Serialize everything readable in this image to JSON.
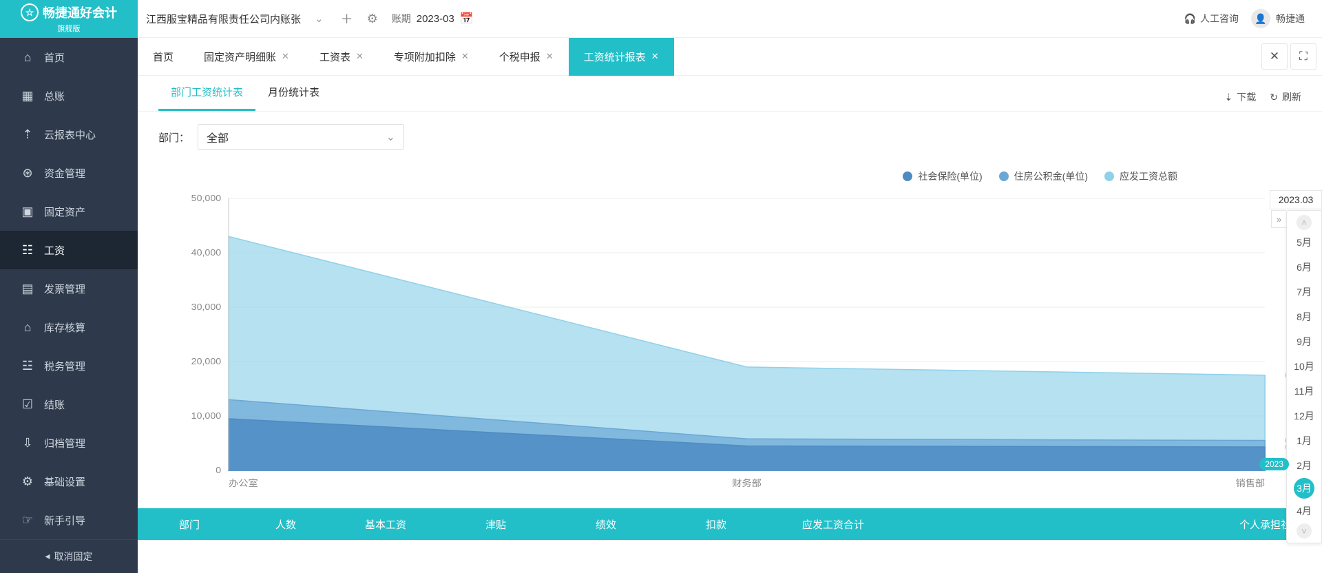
{
  "logo": {
    "brand": "畅捷通好会计",
    "edition": "旗舰版",
    "icon_glyph": "☆"
  },
  "header": {
    "company": "江西服宝精品有限责任公司内账张",
    "period_label": "账期",
    "period_value": "2023-03",
    "support": "人工咨询",
    "username": "畅捷通"
  },
  "sidebar": {
    "items": [
      {
        "icon": "⌂",
        "label": "首页"
      },
      {
        "icon": "▦",
        "label": "总账"
      },
      {
        "icon": "⇡",
        "label": "云报表中心"
      },
      {
        "icon": "⊛",
        "label": "资金管理"
      },
      {
        "icon": "▣",
        "label": "固定资产"
      },
      {
        "icon": "☷",
        "label": "工资"
      },
      {
        "icon": "▤",
        "label": "发票管理"
      },
      {
        "icon": "⌂",
        "label": "库存核算"
      },
      {
        "icon": "☳",
        "label": "税务管理"
      },
      {
        "icon": "☑",
        "label": "结账"
      },
      {
        "icon": "⇩",
        "label": "归档管理"
      },
      {
        "icon": "⚙",
        "label": "基础设置"
      },
      {
        "icon": "☞",
        "label": "新手引导"
      }
    ],
    "active_index": 5,
    "pin_label": "取消固定"
  },
  "tabs": {
    "items": [
      {
        "label": "首页",
        "closable": false
      },
      {
        "label": "固定资产明细账",
        "closable": true
      },
      {
        "label": "工资表",
        "closable": true
      },
      {
        "label": "专项附加扣除",
        "closable": true
      },
      {
        "label": "个税申报",
        "closable": true
      },
      {
        "label": "工资统计报表",
        "closable": true
      }
    ],
    "active_index": 5
  },
  "sub_tabs": {
    "items": [
      "部门工资统计表",
      "月份统计表"
    ],
    "active_index": 0,
    "download": "下载",
    "refresh": "刷新"
  },
  "filter": {
    "label": "部门：",
    "value": "全部"
  },
  "chart": {
    "type": "area",
    "categories": [
      "办公室",
      "财务部",
      "销售部"
    ],
    "series": [
      {
        "name": "社会保险(单位)",
        "color": "#4e8bc3",
        "fill_opacity": 0.85,
        "values": [
          9500,
          4500,
          4300
        ]
      },
      {
        "name": "住房公积金(单位)",
        "color": "#6ba7d5",
        "fill_opacity": 0.7,
        "values": [
          13000,
          5800,
          5500
        ]
      },
      {
        "name": "应发工资总额",
        "color": "#8ed1e9",
        "fill_opacity": 0.65,
        "values": [
          43000,
          19000,
          17500
        ]
      }
    ],
    "y_max": 50000,
    "y_step": 10000,
    "y_ticks": [
      "0",
      "10,000",
      "20,000",
      "30,000",
      "40,000",
      "50,000"
    ],
    "grid_color": "#eeeeee",
    "axis_color": "#888888",
    "background": "#ffffff",
    "marker_color": "#b8dcef"
  },
  "table_header": {
    "cols": [
      "部门",
      "人数",
      "基本工资",
      "津贴",
      "绩效",
      "扣款",
      "应发工资合计"
    ],
    "right_label": "个人承担社保",
    "bg_color": "#23bfc8"
  },
  "month_rail": {
    "year_display": "2023.03",
    "year_badge": "2023",
    "months": [
      "5月",
      "6月",
      "7月",
      "8月",
      "9月",
      "10月",
      "11月",
      "12月",
      "1月",
      "2月",
      "3月",
      "4月"
    ],
    "selected_index": 10
  }
}
